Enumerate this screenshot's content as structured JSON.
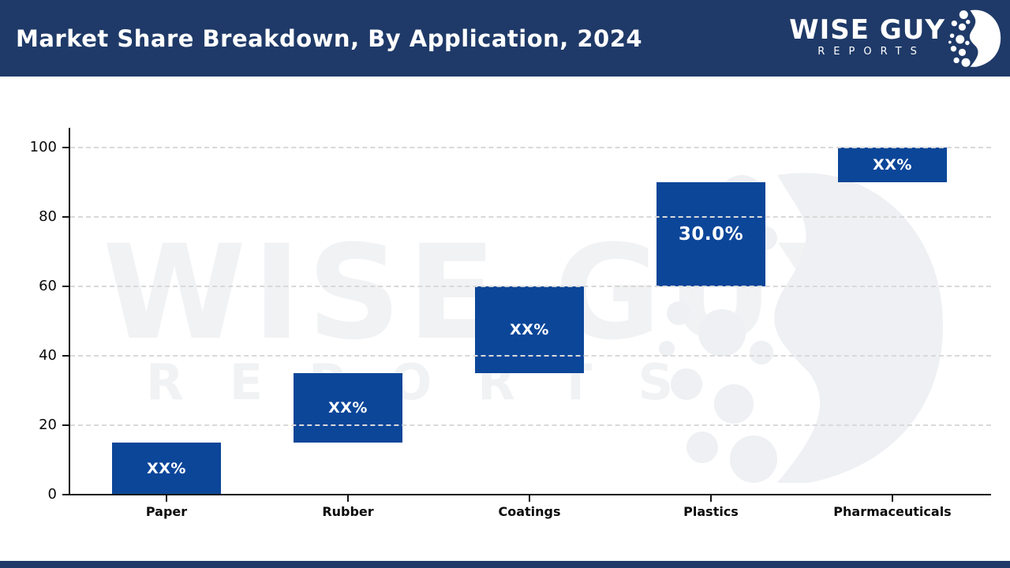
{
  "header": {
    "title": "Market Share Breakdown, By Application, 2024",
    "logo": {
      "line1": "WISE GUY",
      "line2": "REPORTS"
    }
  },
  "watermark": {
    "line1": "WISE GUY",
    "line2": "REPORTS"
  },
  "chart_data": {
    "type": "bar",
    "subtype": "waterfall",
    "title": "Market Share Breakdown, By Application, 2024",
    "categories": [
      "Paper",
      "Rubber",
      "Coatings",
      "Plastics",
      "Pharmaceuticals"
    ],
    "bars": [
      {
        "category": "Paper",
        "from": 0,
        "to": 15,
        "label": "XX%"
      },
      {
        "category": "Rubber",
        "from": 15,
        "to": 35,
        "label": "XX%"
      },
      {
        "category": "Coatings",
        "from": 35,
        "to": 60,
        "label": "XX%"
      },
      {
        "category": "Plastics",
        "from": 60,
        "to": 90,
        "label": "30.0%"
      },
      {
        "category": "Pharmaceuticals",
        "from": 90,
        "to": 100,
        "label": "XX%"
      }
    ],
    "yticks": [
      0,
      20,
      40,
      60,
      80,
      100
    ],
    "ylim": [
      0,
      105
    ],
    "xlabel": "",
    "ylabel": "",
    "grid": true,
    "grid_style": "dashed",
    "legend": false,
    "bar_color": "#0c4699",
    "header_color": "#1f3a68",
    "label_color": "#ffffff"
  }
}
